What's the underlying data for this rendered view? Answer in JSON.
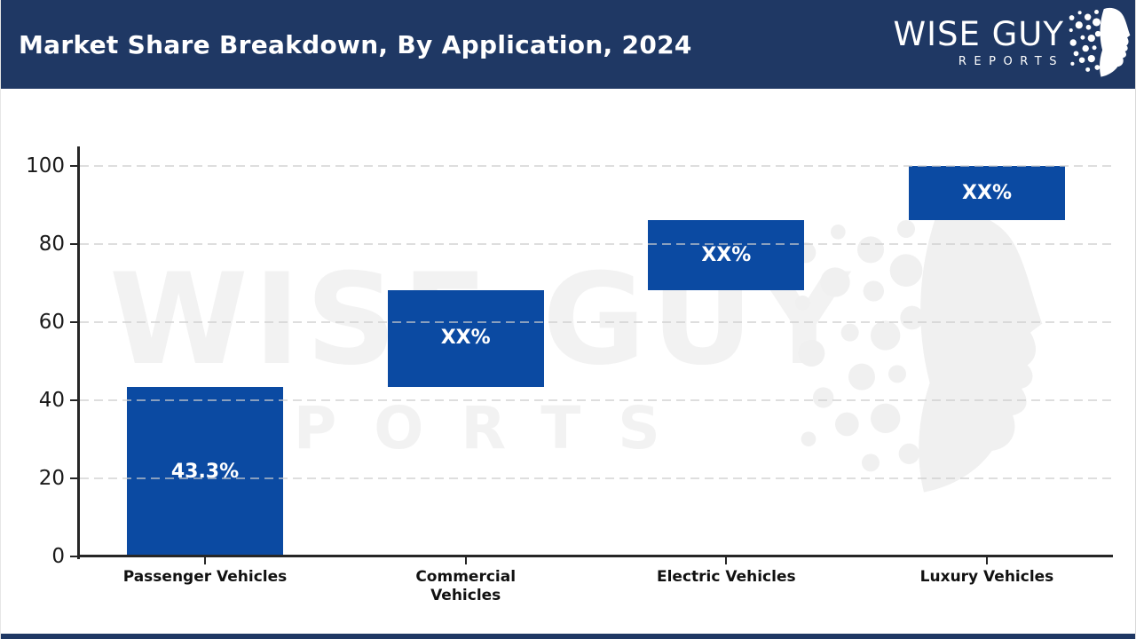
{
  "header": {
    "title": "Market Share Breakdown, By Application, 2024",
    "logo_line1": "WISE GUY",
    "logo_line2": "REPORTS"
  },
  "watermark": {
    "line1": "WISE GUY",
    "line2": "REPORTS"
  },
  "colors": {
    "header_bg": "#1f3864",
    "footer_bg": "#1f3864",
    "page_bg": "#ffffff",
    "bar": "#0b4aa2",
    "axis": "#262626",
    "gridline": "#d4d4d4",
    "watermark": "#f2f2f2"
  },
  "chart_data": {
    "type": "bar",
    "variant": "waterfall",
    "title": "Market Share Breakdown, By Application, 2024",
    "categories": [
      "Passenger Vehicles",
      "Commercial Vehicles",
      "Electric Vehicles",
      "Luxury Vehicles"
    ],
    "category_label_lines": [
      [
        "Passenger Vehicles"
      ],
      [
        "Commercial",
        "Vehicles"
      ],
      [
        "Electric Vehicles"
      ],
      [
        "Luxury Vehicles"
      ]
    ],
    "segments": [
      {
        "category": "Passenger Vehicles",
        "start": 0,
        "end": 43.3,
        "label": "43.3%"
      },
      {
        "category": "Commercial Vehicles",
        "start": 43.4,
        "end": 68.2,
        "label": "XX%"
      },
      {
        "category": "Electric Vehicles",
        "start": 68.2,
        "end": 86.1,
        "label": "XX%"
      },
      {
        "category": "Luxury Vehicles",
        "start": 86.1,
        "end": 100,
        "label": "XX%"
      }
    ],
    "yticks": [
      0,
      20,
      40,
      60,
      80,
      100
    ],
    "ylim": [
      0,
      105
    ],
    "xlabel": "",
    "ylabel": "",
    "legend": "none",
    "grid": "horizontal-dashed"
  }
}
